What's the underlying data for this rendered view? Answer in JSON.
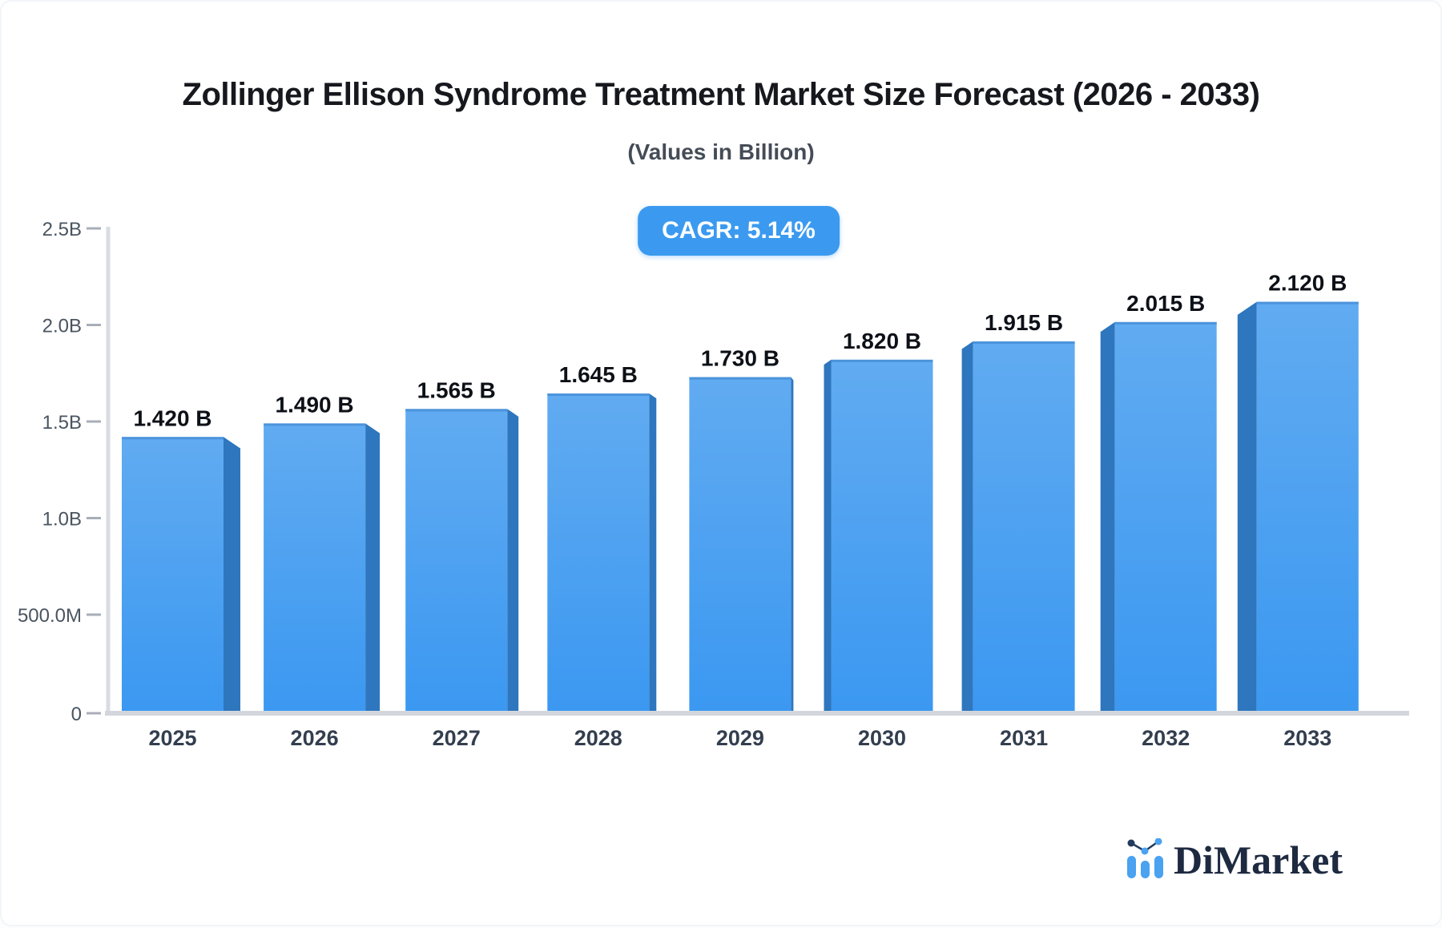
{
  "header": {
    "title": "Zollinger Ellison Syndrome Treatment Market Size Forecast (2026 - 2033)",
    "subtitle": "(Values in Billion)",
    "cagr_label": "CAGR: 5.14%"
  },
  "chart_data": {
    "type": "bar",
    "title": "Zollinger Ellison Syndrome Treatment Market Size Forecast (2026 - 2033)",
    "subtitle": "(Values in Billion)",
    "cagr": "5.14%",
    "categories": [
      "2025",
      "2026",
      "2027",
      "2028",
      "2029",
      "2030",
      "2031",
      "2032",
      "2033"
    ],
    "values": [
      1.42,
      1.49,
      1.565,
      1.645,
      1.73,
      1.82,
      1.915,
      2.015,
      2.12
    ],
    "bar_labels": [
      "1.420 B",
      "1.490 B",
      "1.565 B",
      "1.645 B",
      "1.730 B",
      "1.820 B",
      "1.915 B",
      "2.015 B",
      "2.120 B"
    ],
    "unit": "Billion USD",
    "xlabel": "",
    "ylabel": "",
    "ylim": [
      0,
      2.5
    ],
    "yticks": [
      {
        "value": 0,
        "label": "0"
      },
      {
        "value": 0.5,
        "label": "500.0M"
      },
      {
        "value": 1.0,
        "label": "1.0B"
      },
      {
        "value": 1.5,
        "label": "1.5B"
      },
      {
        "value": 2.0,
        "label": "2.0B"
      },
      {
        "value": 2.5,
        "label": "2.5B"
      }
    ],
    "grid": false,
    "legend": null,
    "colors": {
      "bar_face_top": "#61abf1",
      "bar_face_bottom": "#3b98f1",
      "bar_top_edge": "#4c94dc",
      "bar_side": "#2e76be",
      "axis_line": "#d8dce2",
      "baseline": "#d3d7dd",
      "tick_dash": "#a8aeb8",
      "badge_bg": "#3b9af0"
    }
  },
  "branding": {
    "logo_text": "DiMarket",
    "logo_icon": "bar-chart-trend-icon",
    "logo_text_color": "#1d2a40",
    "logo_icon_color": "#4aa2f0"
  }
}
